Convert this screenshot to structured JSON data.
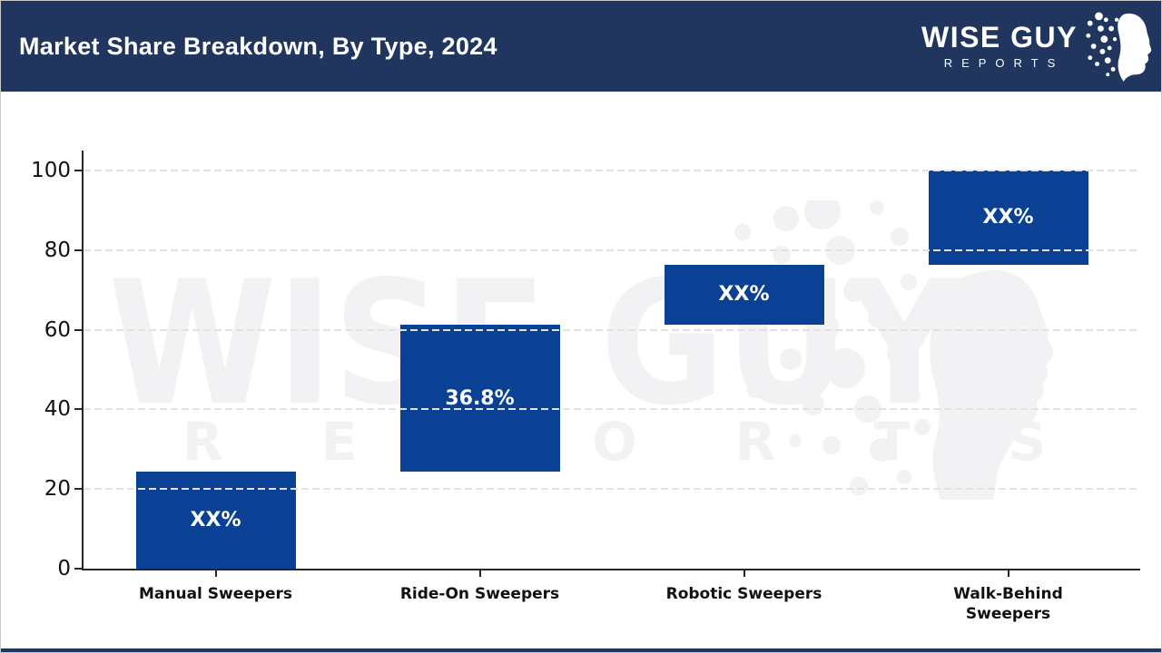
{
  "header": {
    "title": "Market Share Breakdown, By Type, 2024",
    "logo": {
      "line1": "WISE GUY",
      "line2": "REPORTS"
    }
  },
  "watermark": {
    "line1": "WISE GUY",
    "line2": "R E P O R T S"
  },
  "chart_data": {
    "type": "bar",
    "subtype": "waterfall",
    "title": "Market Share Breakdown, By Type, 2024",
    "categories": [
      "Manual Sweepers",
      "Ride-On Sweepers",
      "Robotic Sweepers",
      "Walk-Behind Sweepers"
    ],
    "tick_labels": [
      "Manual Sweepers",
      "Ride-On Sweepers",
      "Robotic Sweepers",
      "Walk-Behind\nSweepers"
    ],
    "segments": [
      {
        "category": "Manual Sweepers",
        "start": 0,
        "end": 24.4,
        "value_label": "XX%"
      },
      {
        "category": "Ride-On Sweepers",
        "start": 24.4,
        "end": 61.2,
        "value": 36.8,
        "value_label": "36.8%"
      },
      {
        "category": "Robotic Sweepers",
        "start": 61.2,
        "end": 76.4,
        "value_label": "XX%"
      },
      {
        "category": "Walk-Behind Sweepers",
        "start": 76.4,
        "end": 100,
        "value_label": "XX%"
      }
    ],
    "xlabel": "",
    "ylabel": "",
    "ylim": [
      0,
      100
    ],
    "yticks": [
      0,
      20,
      40,
      60,
      80,
      100
    ],
    "grid": "horizontal-dashed",
    "legend": "none",
    "bar_color": "#0a4195",
    "bar_label_color": "#ffffff"
  },
  "colors": {
    "header_navy": "#21365f",
    "bar_blue": "#0a4195",
    "watermark_gray": "#f2f2f4",
    "gridline_gray": "#e2e2e2",
    "axis_black": "#262626"
  }
}
